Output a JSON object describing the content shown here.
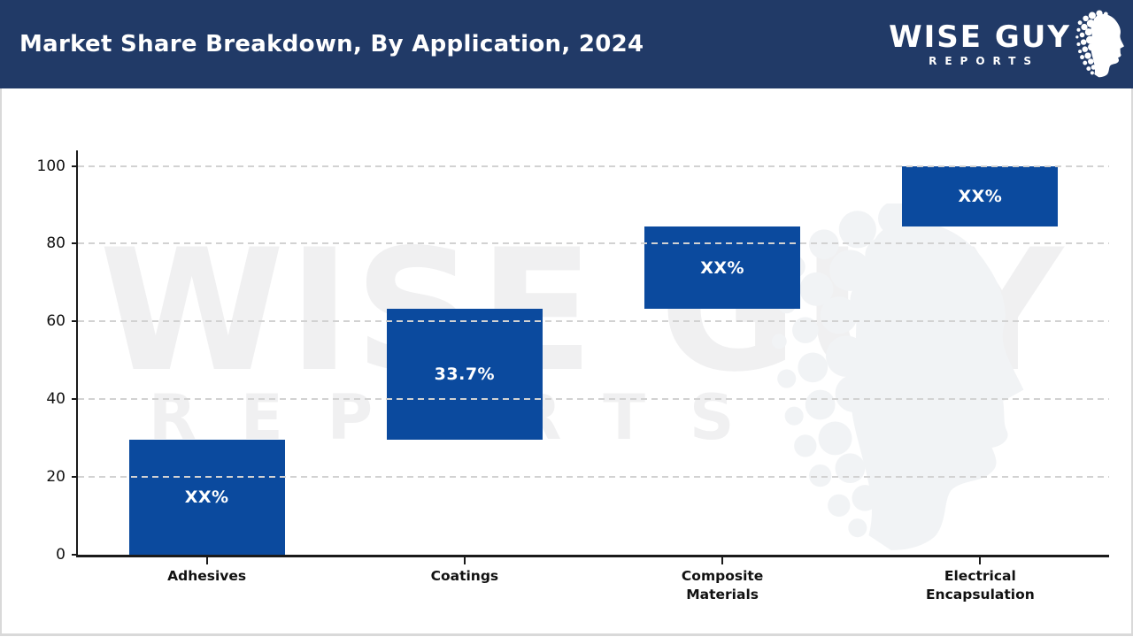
{
  "header": {
    "title": "Market Share Breakdown, By Application, 2024",
    "logo": {
      "name": "WISE GUY",
      "subtext": "REPORTS"
    }
  },
  "watermark": {
    "line1": "WISE GUY",
    "line2": "REPORTS"
  },
  "colors": {
    "header_bg": "#213a67",
    "bar": "#0b4a9e",
    "bar_label": "#ffffff",
    "grid": "#d2d2d2",
    "axis": "#1a1a1a",
    "text": "#111111",
    "watermark": "#f0f0f1",
    "frame_border": "#d9d9d9"
  },
  "chart_data": {
    "type": "bar",
    "subtype": "waterfall-floating-segments",
    "title": "Market Share Breakdown, By Application, 2024",
    "categories": [
      "Adhesives",
      "Coatings",
      "Composite\nMaterials",
      "Electrical\nEncapsulation"
    ],
    "points": [
      {
        "category": "Adhesives",
        "start": 0,
        "end": 29.5,
        "label": "XX%"
      },
      {
        "category": "Coatings",
        "start": 29.5,
        "end": 63.2,
        "label": "33.7%"
      },
      {
        "category": "Composite Materials",
        "start": 63.2,
        "end": 84.4,
        "label": "XX%"
      },
      {
        "category": "Electrical Encapsulation",
        "start": 84.4,
        "end": 100,
        "label": "XX%"
      }
    ],
    "yticks": [
      0,
      20,
      40,
      60,
      80,
      100
    ],
    "ylim": [
      0,
      100
    ],
    "grid": "dashed-horizontal",
    "legend": "none",
    "xlabel": "",
    "ylabel": ""
  }
}
